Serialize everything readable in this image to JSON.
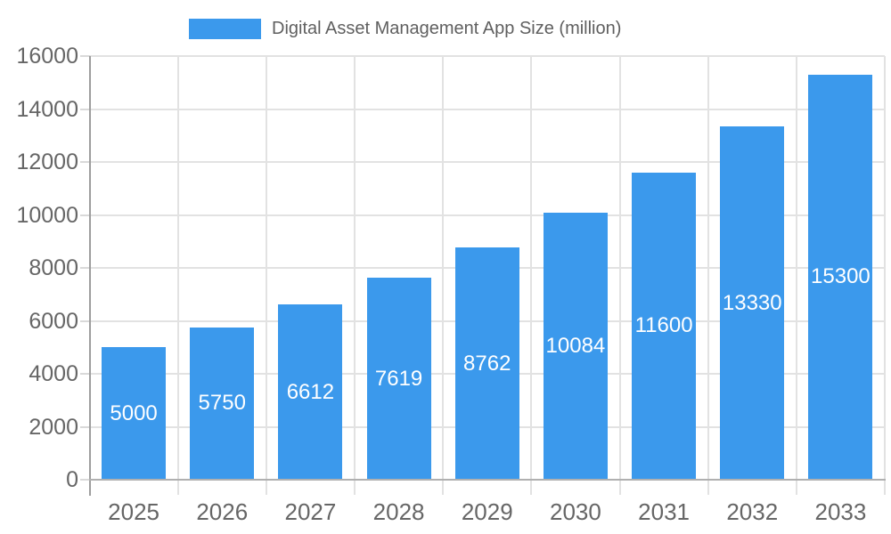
{
  "chart_data": {
    "type": "bar",
    "title": "Digital Asset Management App Size (million)",
    "categories": [
      "2025",
      "2026",
      "2027",
      "2028",
      "2029",
      "2030",
      "2031",
      "2032",
      "2033"
    ],
    "values": [
      5000,
      5750,
      6612,
      7619,
      8762,
      10084,
      11600,
      13330,
      15300
    ],
    "value_labels": [
      "5000",
      "5750",
      "6612",
      "7619",
      "8762",
      "10084",
      "11600",
      "13330",
      "15300"
    ],
    "xlabel": "",
    "ylabel": "",
    "ylim": [
      0,
      16000
    ],
    "ytick_labels": [
      "0",
      "2000",
      "4000",
      "6000",
      "8000",
      "10000",
      "12000",
      "14000",
      "16000"
    ],
    "grid": true,
    "legend_position": "top",
    "colors": {
      "bar": "#3B99EC",
      "bar_value_text": "#ffffff",
      "axis_text": "#666666",
      "legend_text": "#5f5f5f",
      "gridline": "#e2e2e2",
      "axis_line": "#9e9e9e"
    }
  }
}
